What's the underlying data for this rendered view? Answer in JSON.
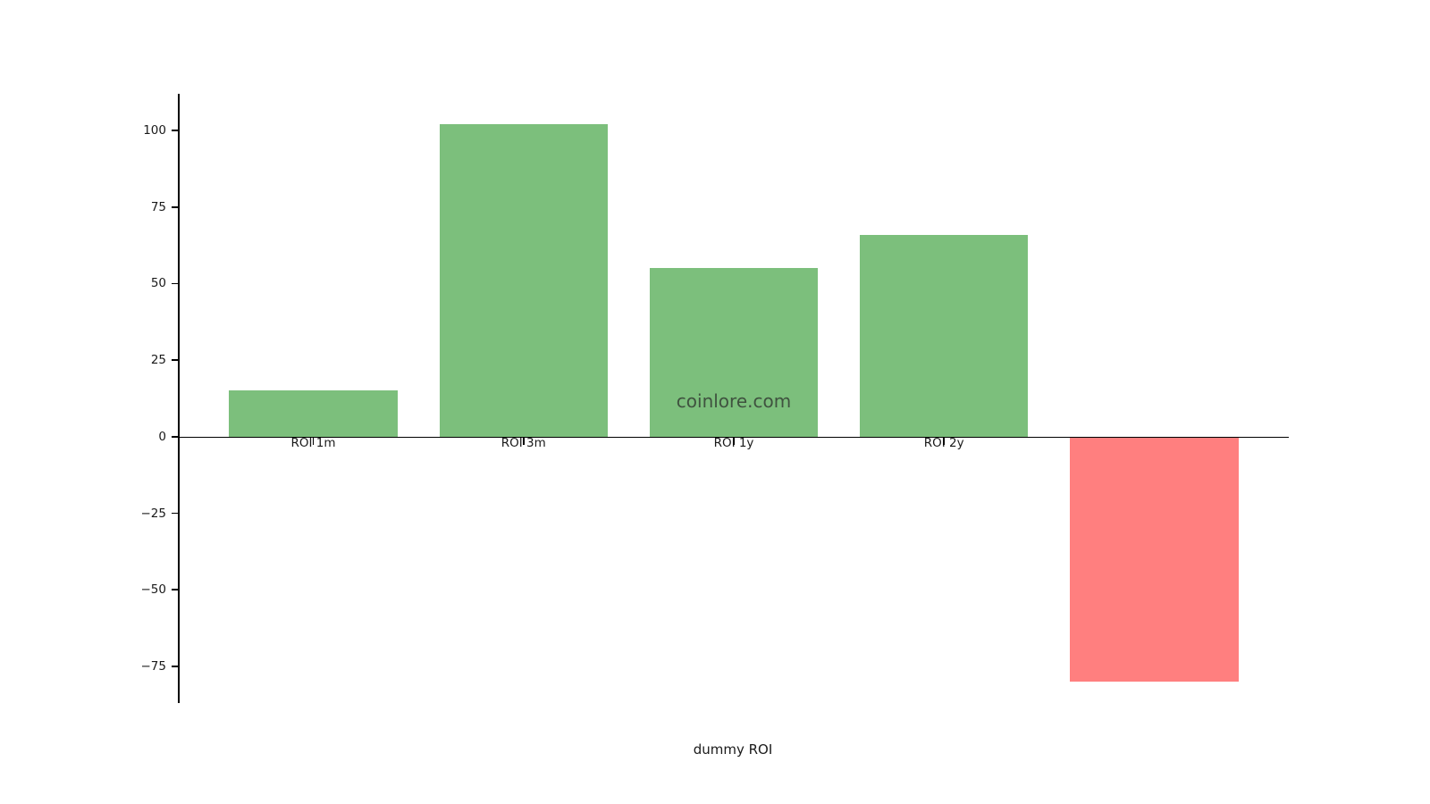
{
  "page": {
    "background": "#ffffff"
  },
  "chart_data": {
    "type": "bar",
    "categories": [
      "ROI 1m",
      "ROI 3m",
      "ROI 1y",
      "ROI 2y",
      ""
    ],
    "values": [
      15,
      102,
      55,
      66,
      -80
    ],
    "title": "",
    "xlabel": "dummy ROI",
    "ylabel": "",
    "watermark": "coinlore.com",
    "y_ticks": [
      100,
      75,
      50,
      25,
      0,
      -25,
      -50,
      -75
    ],
    "ylim": [
      -87,
      112
    ],
    "xlim": [
      -0.64,
      4.64
    ],
    "bar_width_fraction": 0.8,
    "grid": false,
    "legend": false,
    "colors": {
      "positive": "#7cbf7c",
      "negative": "#ff7f7f",
      "axis": "#000000",
      "tick_label": "#1a1a1a",
      "watermark": "rgba(40,40,40,0.72)",
      "xlabel_color": "#1a1a1a"
    }
  }
}
